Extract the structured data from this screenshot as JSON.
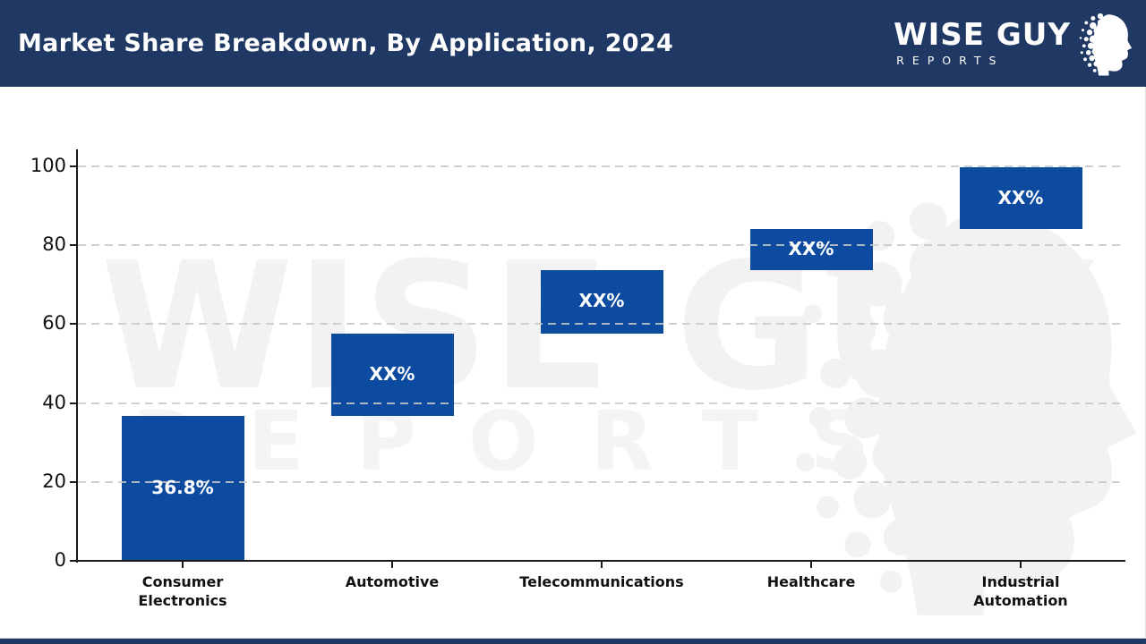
{
  "header": {
    "title": "Market Share Breakdown, By Application, 2024",
    "logo": {
      "line1": "WISE GUY",
      "line2": "REPORTS"
    }
  },
  "watermark": {
    "line1": "WISE GUY",
    "line2": "REPORTS"
  },
  "chart_data": {
    "type": "bar",
    "subtype": "waterfall",
    "title": "Market Share Breakdown, By Application, 2024",
    "categories": [
      "Consumer Electronics",
      "Automotive",
      "Telecommunications",
      "Healthcare",
      "Industrial Automation"
    ],
    "bars": [
      {
        "category": "Consumer Electronics",
        "start": 0,
        "end": 36.8,
        "label": "36.8%"
      },
      {
        "category": "Automotive",
        "start": 36.8,
        "end": 57.7,
        "label": "XX%"
      },
      {
        "category": "Telecommunications",
        "start": 57.7,
        "end": 73.6,
        "label": "XX%"
      },
      {
        "category": "Healthcare",
        "start": 73.6,
        "end": 84.1,
        "label": "XX%"
      },
      {
        "category": "Industrial Automation",
        "start": 84.1,
        "end": 99.8,
        "label": "XX%"
      }
    ],
    "yticks": [
      0,
      20,
      40,
      60,
      80,
      100
    ],
    "ylim": [
      0,
      104
    ],
    "grid": "horizontal-dashed",
    "legend": "none",
    "bar_color": "#0c4ba0",
    "bar_label_color": "#ffffff"
  },
  "colors": {
    "header_bg": "#1f3864",
    "footer_bg": "#1f3864",
    "bar": "#0c4ba0",
    "axis": "#1a1a1a",
    "watermark": "#f2f2f2"
  }
}
